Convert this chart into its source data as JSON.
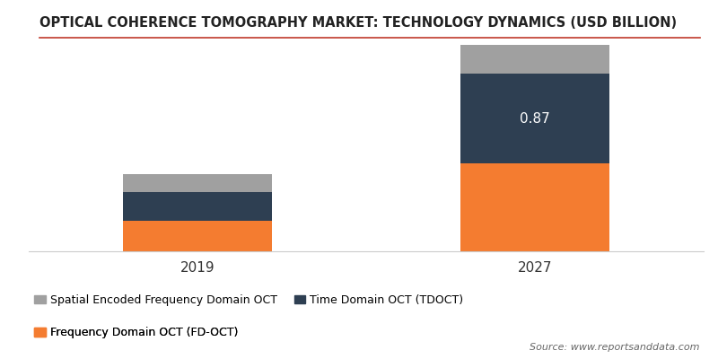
{
  "title": "OPTICAL COHERENCE TOMOGRAPHY MARKET: TECHNOLOGY DYNAMICS (USD BILLION)",
  "categories": [
    "2019",
    "2027"
  ],
  "segments": {
    "orange": {
      "label": "Frequency Domain OCT (FD-OCT)",
      "values": [
        0.3,
        0.85
      ],
      "color": "#F47C30"
    },
    "navy": {
      "label": "Time Domain OCT (TDOCT)",
      "values": [
        0.27,
        0.87
      ],
      "color": "#2E3F52"
    },
    "gray": {
      "label": "Spatial Encoded Frequency Domain OCT",
      "values": [
        0.18,
        0.55
      ],
      "color": "#A0A0A0"
    }
  },
  "annotation": {
    "text": "0.87",
    "bar_index": 1,
    "segment": "navy",
    "color": "#FFFFFF",
    "fontsize": 11
  },
  "bar_width": 0.22,
  "x_positions": [
    0.25,
    0.75
  ],
  "x_lim": [
    0.0,
    1.0
  ],
  "y_lim": [
    0,
    2.0
  ],
  "title_fontsize": 10.5,
  "title_color": "#222222",
  "background_color": "#FFFFFF",
  "source_text": "Source: www.reportsanddata.com",
  "title_line_color": "#C0392B",
  "legend_fontsize": 9,
  "tick_fontsize": 11
}
